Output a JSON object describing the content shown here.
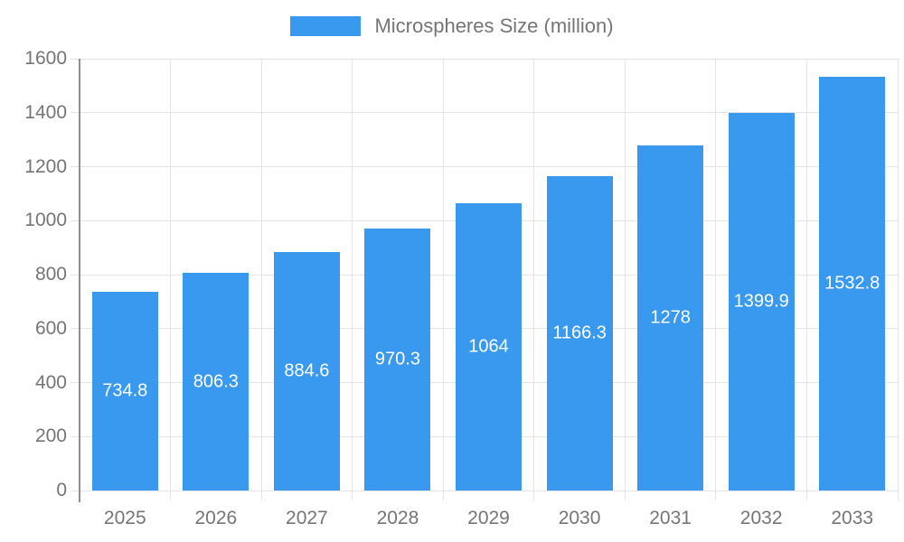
{
  "legend": {
    "label": "Microspheres Size (million)",
    "swatch_icon": "legend-swatch-blue",
    "swatch_color": "#3999ee"
  },
  "chart_data": {
    "type": "bar",
    "title": "Microspheres Size (million)",
    "categories": [
      "2025",
      "2026",
      "2027",
      "2028",
      "2029",
      "2030",
      "2031",
      "2032",
      "2033"
    ],
    "series": [
      {
        "name": "Microspheres Size (million)",
        "values": [
          734.8,
          806.3,
          884.6,
          970.3,
          1064,
          1166.3,
          1278,
          1399.9,
          1532.8
        ]
      }
    ],
    "value_labels": [
      "734.8",
      "806.3",
      "884.6",
      "970.3",
      "1064",
      "1166.3",
      "1278",
      "1399.9",
      "1532.8"
    ],
    "xlabel": "",
    "ylabel": "",
    "ylim": [
      0,
      1600
    ],
    "y_ticks": [
      0,
      200,
      400,
      600,
      800,
      1000,
      1200,
      1400,
      1600
    ],
    "grid": true,
    "legend_position": "top-center",
    "colors": {
      "bar": "#3999ee",
      "grid": "#e4e4e4",
      "axis_line": "#8f8f8f",
      "axis_text": "#757575",
      "bar_label_text": "#ffffff"
    }
  }
}
